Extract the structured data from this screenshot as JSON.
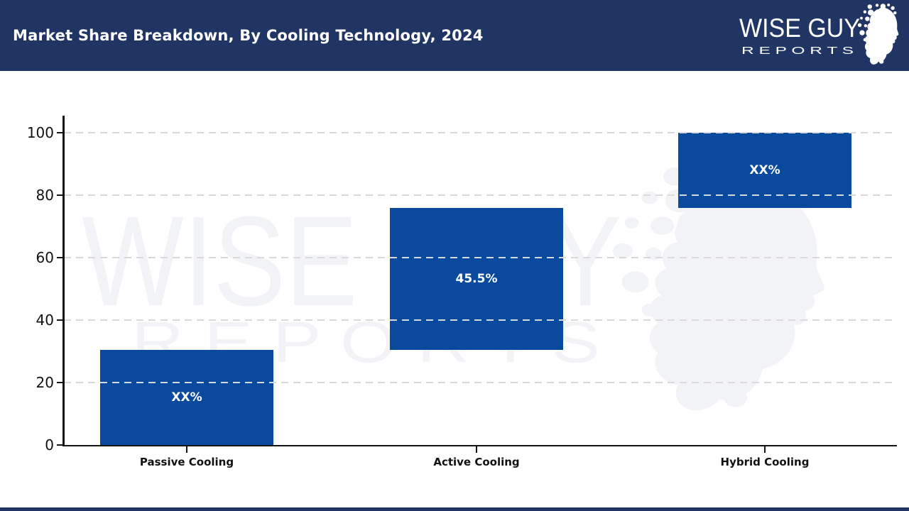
{
  "header": {
    "title": "Market Share Breakdown, By Cooling Technology, 2024"
  },
  "brand": {
    "line1": "WISE GUY",
    "line2": "R E P O R T S"
  },
  "watermark": {
    "line1": "WISE GUY",
    "line2": "R E P O R T S"
  },
  "chart_data": {
    "type": "bar",
    "subtype": "waterfall",
    "title": "Market Share Breakdown, By Cooling Technology, 2024",
    "categories": [
      "Passive Cooling",
      "Active Cooling",
      "Hybrid Cooling"
    ],
    "segments": [
      {
        "category": "Passive Cooling",
        "start": 0,
        "end": 30.5,
        "label": "XX%"
      },
      {
        "category": "Active Cooling",
        "start": 30.5,
        "end": 76,
        "label": "45.5%"
      },
      {
        "category": "Hybrid Cooling",
        "start": 76,
        "end": 100,
        "label": "XX%"
      }
    ],
    "ylim": [
      0,
      100
    ],
    "yticks": [
      0,
      20,
      40,
      60,
      80,
      100
    ],
    "grid": "horizontal-dashed",
    "legend": "none",
    "colors": {
      "bar": "#0a4a9e",
      "value_label": "#ffffff",
      "grid_line": "#d9d9d9",
      "axis": "#141414",
      "header_bg": "#213564",
      "watermark": "#f2f3f6"
    }
  }
}
